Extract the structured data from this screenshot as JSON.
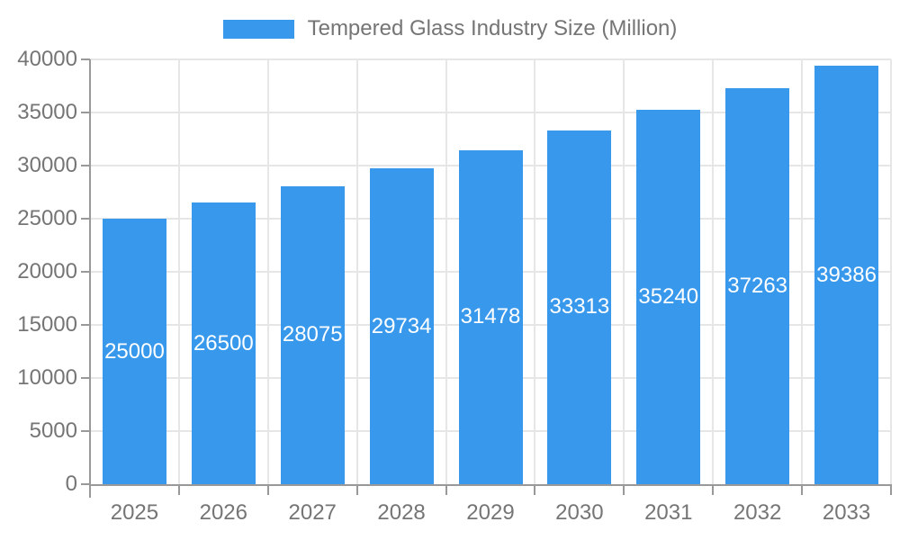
{
  "legend": {
    "label": "Tempered Glass Industry Size (Million)"
  },
  "colors": {
    "bar": "#3898EC",
    "grid": "#E6E6E6",
    "axis": "#999999",
    "tick_text": "#757575",
    "value_text": "#FFFFFF",
    "background": "#FFFFFF"
  },
  "chart_data": {
    "type": "bar",
    "title": "",
    "categories": [
      "2025",
      "2026",
      "2027",
      "2028",
      "2029",
      "2030",
      "2031",
      "2032",
      "2033"
    ],
    "series": [
      {
        "name": "Tempered Glass Industry Size (Million)",
        "values": [
          25000,
          26500,
          28075,
          29734,
          31478,
          33313,
          35240,
          37263,
          39386
        ]
      }
    ],
    "xlabel": "",
    "ylabel": "",
    "ylim": [
      0,
      40000
    ],
    "ytick_step": 5000,
    "yticks": [
      0,
      5000,
      10000,
      15000,
      20000,
      25000,
      30000,
      35000,
      40000
    ],
    "grid": true,
    "legend_position": "top",
    "value_label_position": "inside-center"
  }
}
